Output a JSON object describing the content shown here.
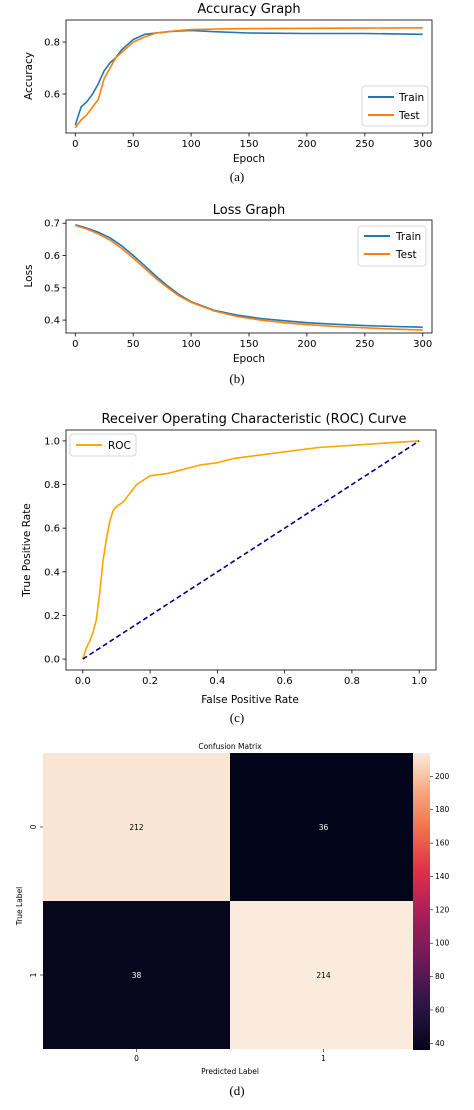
{
  "chart_data": [
    {
      "type": "line",
      "title": "Accuracy Graph",
      "xlabel": "Epoch",
      "ylabel": "Accuracy",
      "xlim": [
        -8,
        308
      ],
      "ylim": [
        0.45,
        0.885
      ],
      "xticks": [
        0,
        50,
        100,
        150,
        200,
        250,
        300
      ],
      "yticks": [
        0.6,
        0.8
      ],
      "legend": "bottom-right",
      "caption": "(a)",
      "series": [
        {
          "name": "Train",
          "color": "#1f77b4",
          "x": [
            0,
            5,
            10,
            15,
            20,
            25,
            30,
            35,
            40,
            45,
            50,
            60,
            70,
            80,
            90,
            100,
            120,
            150,
            200,
            250,
            300
          ],
          "y": [
            0.48,
            0.55,
            0.57,
            0.6,
            0.64,
            0.69,
            0.72,
            0.74,
            0.77,
            0.79,
            0.81,
            0.83,
            0.835,
            0.84,
            0.843,
            0.845,
            0.84,
            0.835,
            0.833,
            0.833,
            0.83
          ]
        },
        {
          "name": "Test",
          "color": "#ff7f0e",
          "x": [
            0,
            5,
            10,
            15,
            20,
            25,
            30,
            35,
            40,
            45,
            50,
            60,
            70,
            80,
            90,
            100,
            120,
            150,
            200,
            250,
            300
          ],
          "y": [
            0.47,
            0.5,
            0.52,
            0.55,
            0.58,
            0.66,
            0.7,
            0.74,
            0.76,
            0.78,
            0.8,
            0.82,
            0.835,
            0.84,
            0.845,
            0.848,
            0.85,
            0.852,
            0.853,
            0.854,
            0.855
          ]
        }
      ]
    },
    {
      "type": "line",
      "title": "Loss Graph",
      "xlabel": "Epoch",
      "ylabel": "Loss",
      "xlim": [
        -8,
        308
      ],
      "ylim": [
        0.36,
        0.71
      ],
      "xticks": [
        0,
        50,
        100,
        150,
        200,
        250,
        300
      ],
      "yticks": [
        0.4,
        0.5,
        0.6,
        0.7
      ],
      "legend": "top-right",
      "caption": "(b)",
      "series": [
        {
          "name": "Train",
          "color": "#1f77b4",
          "x": [
            0,
            10,
            20,
            30,
            40,
            50,
            60,
            70,
            80,
            90,
            100,
            120,
            140,
            160,
            180,
            200,
            225,
            250,
            275,
            300
          ],
          "y": [
            0.695,
            0.685,
            0.672,
            0.655,
            0.63,
            0.6,
            0.568,
            0.535,
            0.505,
            0.478,
            0.457,
            0.43,
            0.415,
            0.405,
            0.398,
            0.392,
            0.387,
            0.383,
            0.38,
            0.378
          ]
        },
        {
          "name": "Test",
          "color": "#ff7f0e",
          "x": [
            0,
            10,
            20,
            30,
            40,
            50,
            60,
            70,
            80,
            90,
            100,
            120,
            140,
            160,
            180,
            200,
            225,
            250,
            275,
            300
          ],
          "y": [
            0.693,
            0.682,
            0.667,
            0.648,
            0.622,
            0.592,
            0.56,
            0.528,
            0.5,
            0.474,
            0.455,
            0.428,
            0.411,
            0.4,
            0.392,
            0.386,
            0.38,
            0.376,
            0.372,
            0.369
          ]
        }
      ]
    },
    {
      "type": "line",
      "title": "Receiver Operating Characteristic (ROC) Curve",
      "xlabel": "False Positive Rate",
      "ylabel": "True Positive Rate",
      "xlim": [
        -0.05,
        1.05
      ],
      "ylim": [
        -0.05,
        1.05
      ],
      "xticks": [
        0.0,
        0.2,
        0.4,
        0.6,
        0.8,
        1.0
      ],
      "yticks": [
        0.0,
        0.2,
        0.4,
        0.6,
        0.8,
        1.0
      ],
      "tick_format": 1,
      "legend": "top-left",
      "caption": "(c)",
      "series": [
        {
          "name": "ROC",
          "color": "#ffa500",
          "x": [
            0.0,
            0.01,
            0.02,
            0.03,
            0.04,
            0.05,
            0.06,
            0.07,
            0.08,
            0.09,
            0.1,
            0.12,
            0.14,
            0.16,
            0.18,
            0.2,
            0.25,
            0.3,
            0.35,
            0.4,
            0.45,
            0.5,
            0.6,
            0.7,
            0.8,
            0.9,
            1.0
          ],
          "y": [
            0.0,
            0.05,
            0.08,
            0.12,
            0.18,
            0.3,
            0.45,
            0.55,
            0.63,
            0.68,
            0.7,
            0.72,
            0.76,
            0.8,
            0.82,
            0.84,
            0.85,
            0.87,
            0.89,
            0.9,
            0.92,
            0.93,
            0.95,
            0.97,
            0.98,
            0.99,
            1.0
          ]
        },
        {
          "name": "",
          "color": "#00008b",
          "dashed": true,
          "x": [
            0.0,
            1.0
          ],
          "y": [
            0.0,
            1.0
          ]
        }
      ]
    },
    {
      "type": "heatmap",
      "title": "Confusion Matrix",
      "xlabel": "Predicted Label",
      "ylabel": "True Label",
      "x_tick_labels": [
        "0",
        "1"
      ],
      "y_tick_labels": [
        "0",
        "1"
      ],
      "values": [
        [
          212,
          36
        ],
        [
          38,
          214
        ]
      ],
      "colorbar_ticks": [
        40,
        60,
        80,
        100,
        120,
        140,
        160,
        180,
        200
      ],
      "colorbar_range": [
        36,
        214
      ],
      "caption": "(d)"
    }
  ]
}
